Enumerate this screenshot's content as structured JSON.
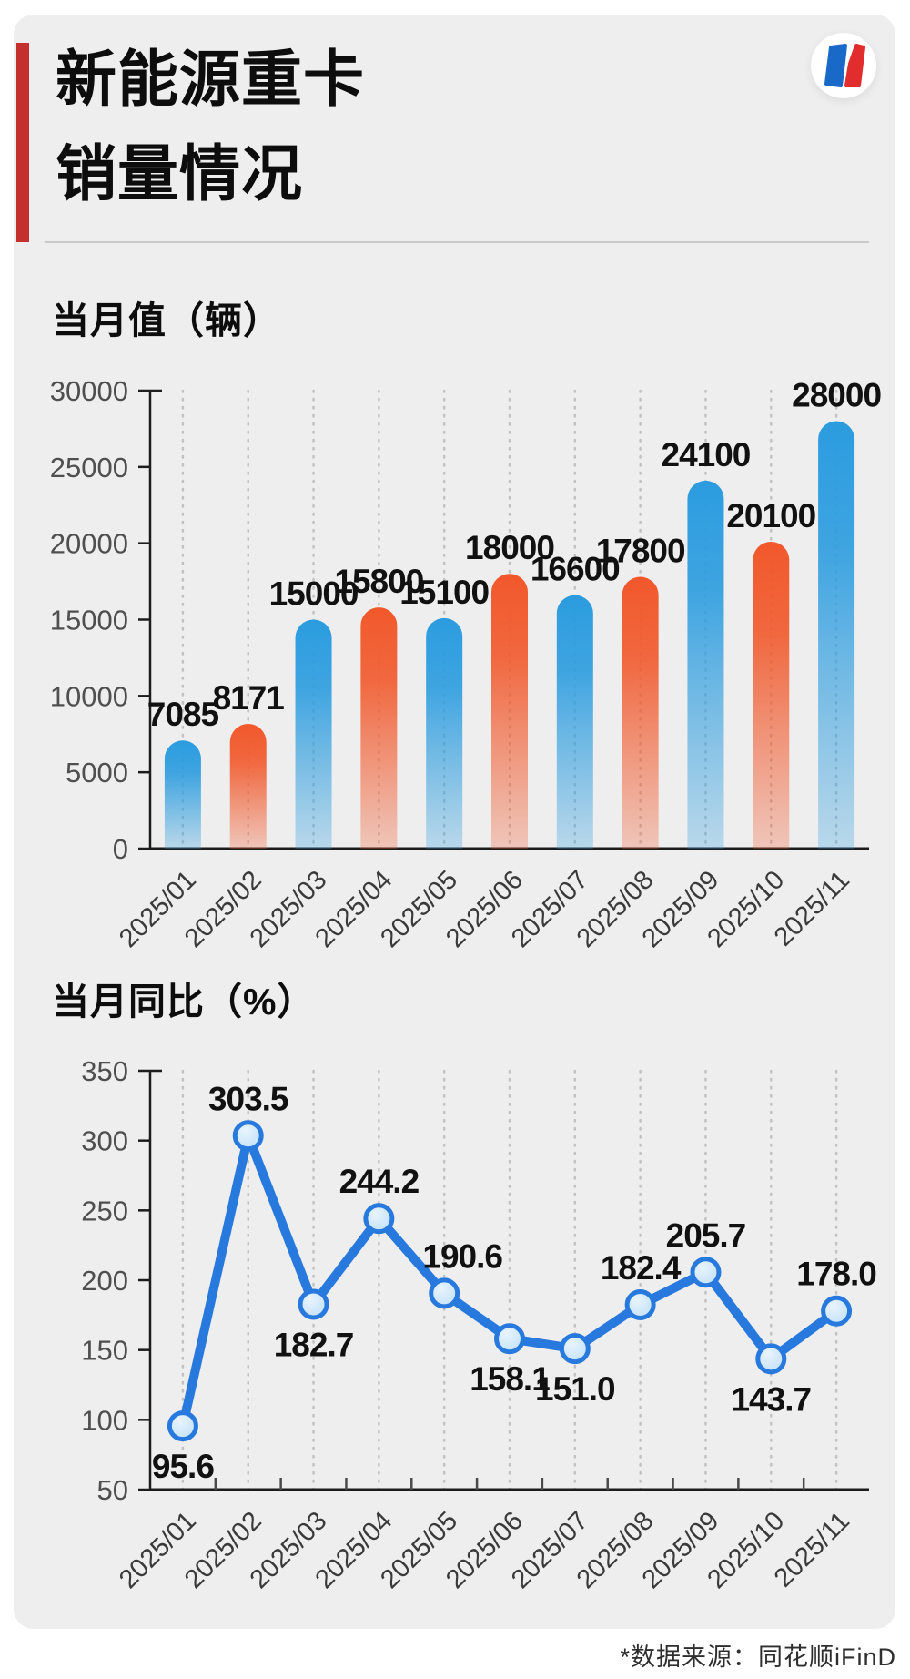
{
  "header": {
    "title_line1": "新能源重卡",
    "title_line2": "销量情况",
    "logo_name": "tonghuashun-ifind-logo"
  },
  "footer": {
    "source_note": "*数据来源：同花顺iFinD"
  },
  "colors": {
    "page_bg": "#ffffff",
    "card_bg": "#eeeeee",
    "accent_red": "#c3302d",
    "bar_blue": "#2b9cdf",
    "bar_orange": "#f1582b",
    "line_blue": "#2879dd",
    "marker_fill": "#c3e1f8",
    "marker_fill_light": "#e8f4fd",
    "grid": "#c2c2c2",
    "axis": "#1c1c1c",
    "value_label": "#111111",
    "ytick_label": "#4f4f4f",
    "xtick_label": "#3a3a3a",
    "logo_blue": "#1969c8",
    "logo_red": "#e12d2d",
    "divider": "#c9c9c9"
  },
  "chart_data": [
    {
      "type": "bar",
      "title": "当月值（辆）",
      "categories": [
        "2025/01",
        "2025/02",
        "2025/03",
        "2025/04",
        "2025/05",
        "2025/06",
        "2025/07",
        "2025/08",
        "2025/09",
        "2025/10",
        "2025/11"
      ],
      "values": [
        7085,
        8171,
        15000,
        15800,
        15100,
        18000,
        16600,
        17800,
        24100,
        20100,
        28000
      ],
      "ylim": [
        0,
        30000
      ],
      "yticks": [
        0,
        5000,
        10000,
        15000,
        20000,
        25000,
        30000
      ],
      "grid": "vertical-dotted",
      "bar_color_pattern": [
        "blue",
        "orange"
      ],
      "legend": "none"
    },
    {
      "type": "line",
      "title": "当月同比（%）",
      "categories": [
        "2025/01",
        "2025/02",
        "2025/03",
        "2025/04",
        "2025/05",
        "2025/06",
        "2025/07",
        "2025/08",
        "2025/09",
        "2025/10",
        "2025/11"
      ],
      "values": [
        95.6,
        303.5,
        182.7,
        244.2,
        190.6,
        158.1,
        151.0,
        182.4,
        205.7,
        143.7,
        178.0
      ],
      "ylim": [
        50,
        350
      ],
      "yticks": [
        50,
        100,
        150,
        200,
        250,
        300,
        350
      ],
      "grid": "vertical-dotted",
      "label_placement": [
        "below",
        "above",
        "below",
        "above",
        "above-right",
        "below",
        "below",
        "above",
        "above",
        "below",
        "above"
      ],
      "legend": "none"
    }
  ]
}
